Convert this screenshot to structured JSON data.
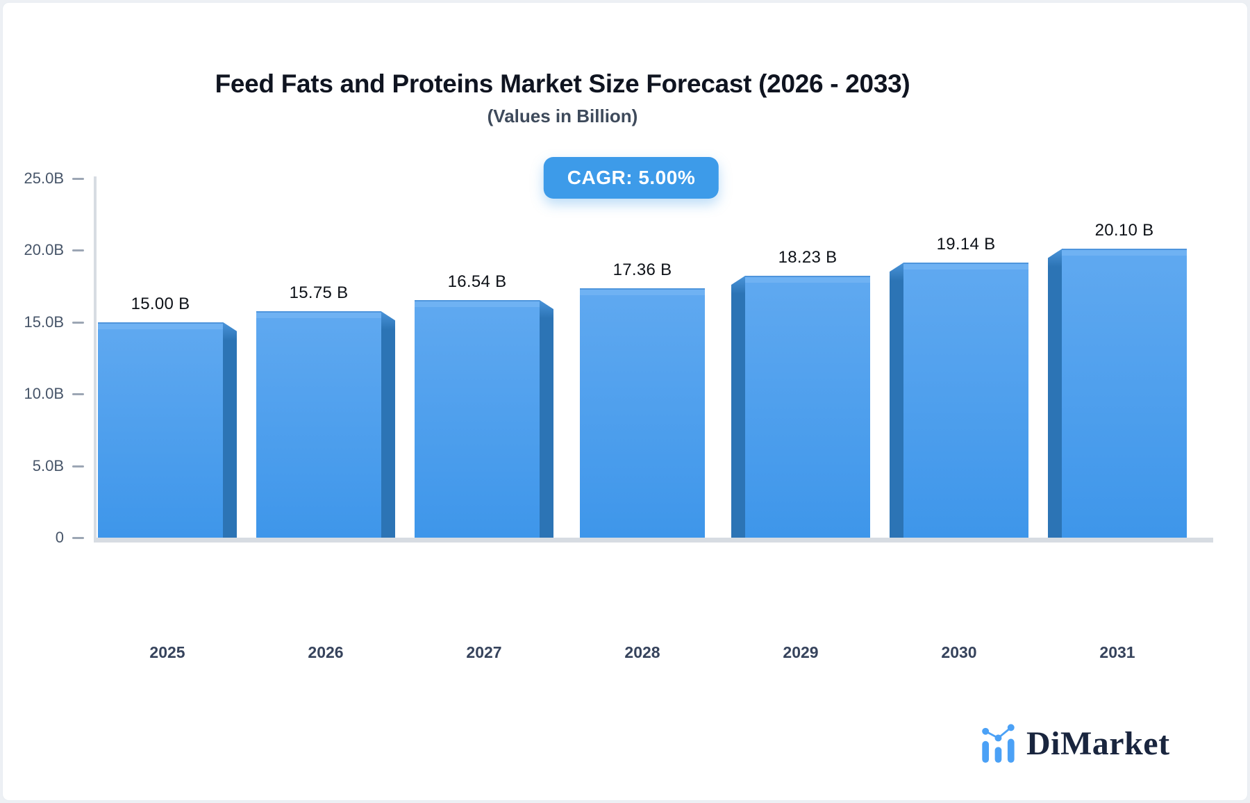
{
  "header": {
    "title": "Feed Fats and Proteins Market Size Forecast (2026 - 2033)",
    "subtitle": "(Values in Billion)",
    "cagr_label": "CAGR: 5.00%"
  },
  "footer": {
    "brand": "DiMarket"
  },
  "colors": {
    "accent_blue": "#3D9BE9",
    "bar_top_cap": "#6FB2F3",
    "bar_cap_edge": "#4E95DC",
    "bar_body_top": "#60A9F0",
    "bar_body_bottom": "#3E96EA",
    "bar_side_face": "#2C74B5",
    "bar_bevel": "#4A94DA",
    "axis_line": "#D7DCE2",
    "tick_dash": "#9CA6B4",
    "y_label_color": "#475569",
    "x_label_color": "#36435C",
    "value_label_color": "#0D1117",
    "title_color": "#0F1420",
    "subtitle_color": "#3E4A5B",
    "brand_navy": "#19253E",
    "brand_blue": "#4BA1F6"
  },
  "chart_data": {
    "type": "bar",
    "title": "Feed Fats and Proteins Market Size Forecast (2026 - 2033)",
    "subtitle": "(Values in Billion)",
    "unit": "Billion",
    "cagr": "5.00%",
    "categories": [
      "2025",
      "2026",
      "2027",
      "2028",
      "2029",
      "2030",
      "2031"
    ],
    "values": [
      15.0,
      15.75,
      16.54,
      17.36,
      18.23,
      19.14,
      20.1
    ],
    "value_labels": [
      "15.00 B",
      "15.75 B",
      "16.54 B",
      "17.36 B",
      "18.23 B",
      "19.14 B",
      "20.10 B"
    ],
    "ylim": [
      0,
      25
    ],
    "y_ticks": [
      {
        "value": 25,
        "label": "25.0B"
      },
      {
        "value": 20,
        "label": "20.0B"
      },
      {
        "value": 15,
        "label": "15.0B"
      },
      {
        "value": 10,
        "label": "10.0B"
      },
      {
        "value": 5,
        "label": "5.0B"
      },
      {
        "value": 0,
        "label": "0"
      }
    ],
    "grid": false,
    "legend": false,
    "bar_style": "3d-perspective"
  }
}
